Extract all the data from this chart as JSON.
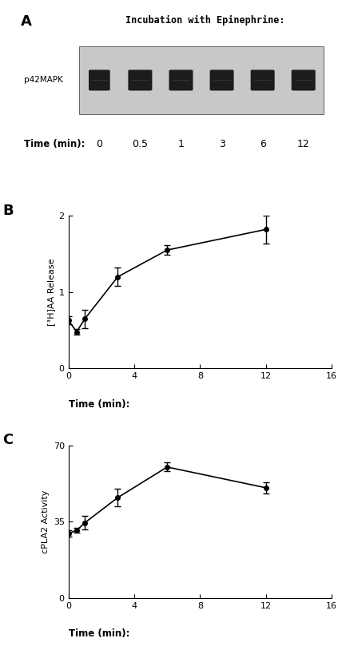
{
  "panel_A": {
    "title": "Incubation with Epinephrine:",
    "label": "p42MAPK",
    "time_labels": [
      "0",
      "0.5",
      "1",
      "3",
      "6",
      "12"
    ],
    "time_xlabel": "Time (min):",
    "gel_bg": "#cccccc",
    "band_color": "#1a1a1a"
  },
  "panel_B": {
    "xlabel": "Time (min):",
    "ylabel": "[³H]AA Release",
    "x": [
      0,
      0.5,
      1,
      3,
      6,
      12
    ],
    "y": [
      0.63,
      0.48,
      0.65,
      1.2,
      1.55,
      1.82
    ],
    "yerr": [
      0.05,
      0.04,
      0.12,
      0.12,
      0.06,
      0.18
    ],
    "xlim": [
      0,
      16
    ],
    "ylim": [
      0,
      2.0
    ],
    "xticks": [
      0,
      4,
      8,
      12,
      16
    ],
    "yticks": [
      0,
      1,
      2
    ]
  },
  "panel_C": {
    "xlabel": "Time (min):",
    "ylabel": "cPLA2 Activity",
    "x": [
      0,
      0.5,
      1,
      3,
      6,
      12
    ],
    "y": [
      29.5,
      31.0,
      34.5,
      46.0,
      60.0,
      50.5
    ],
    "yerr": [
      1.5,
      1.0,
      3.0,
      4.0,
      2.0,
      2.5
    ],
    "xlim": [
      0,
      16
    ],
    "ylim": [
      0,
      70
    ],
    "xticks": [
      0,
      4,
      8,
      12,
      16
    ],
    "yticks": [
      0,
      35,
      70
    ]
  },
  "bg_color": "#ffffff",
  "line_color": "#000000",
  "marker_color": "#000000"
}
